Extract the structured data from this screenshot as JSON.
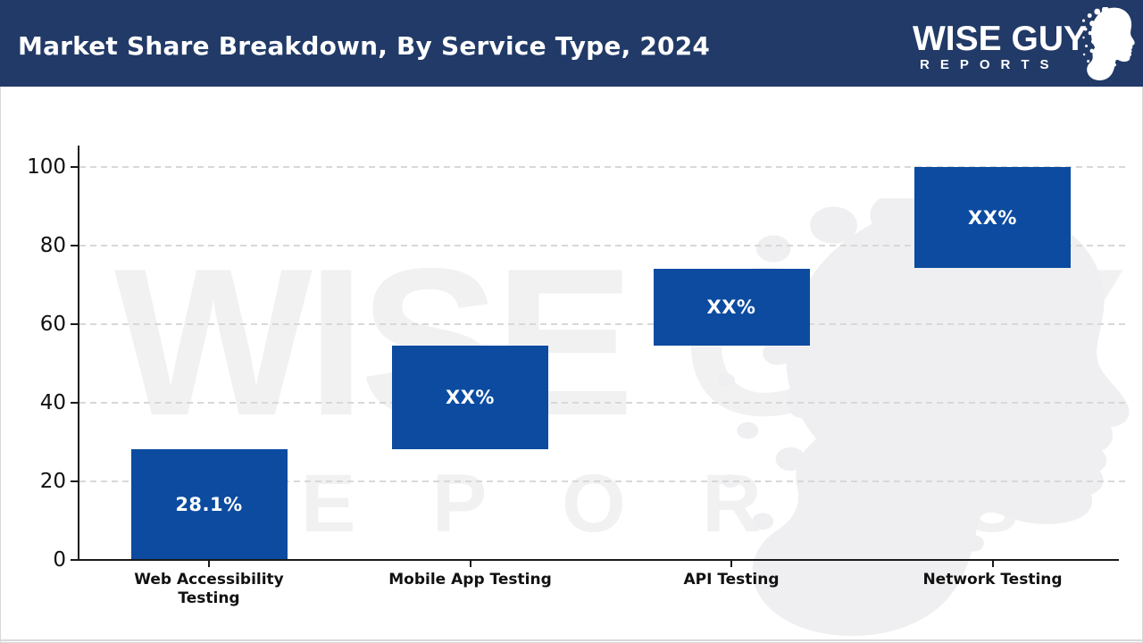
{
  "header": {
    "title": "Market Share Breakdown, By Service Type, 2024",
    "bg_color": "#213a67",
    "logo": {
      "line1": "WISE GUY",
      "line2": "REPORTS"
    }
  },
  "watermark": {
    "line1": "WISE GUY",
    "line2": "R E P O R T S"
  },
  "chart_data": {
    "type": "bar",
    "subtype": "waterfall",
    "title": "Market Share Breakdown, By Service Type, 2024",
    "xlabel": "",
    "ylabel": "",
    "categories": [
      "Web Accessibility Testing",
      "Mobile App Testing",
      "API Testing",
      "Network Testing"
    ],
    "bars": [
      {
        "category": "Web Accessibility Testing",
        "start": 0,
        "end": 28.1,
        "label": "28.1%"
      },
      {
        "category": "Mobile App Testing",
        "start": 28.1,
        "end": 54.4,
        "label": "XX%"
      },
      {
        "category": "API Testing",
        "start": 54.4,
        "end": 74.2,
        "label": "XX%"
      },
      {
        "category": "Network Testing",
        "start": 74.2,
        "end": 100,
        "label": "XX%"
      }
    ],
    "ylim": [
      0,
      105
    ],
    "yticks": [
      0,
      20,
      40,
      60,
      80,
      100
    ],
    "grid": "horizontal-dashed",
    "legend": "none",
    "bar_color": "#0c4ba0",
    "bar_label_color": "#ffffff",
    "gridline_color": "#d8d8d8"
  }
}
